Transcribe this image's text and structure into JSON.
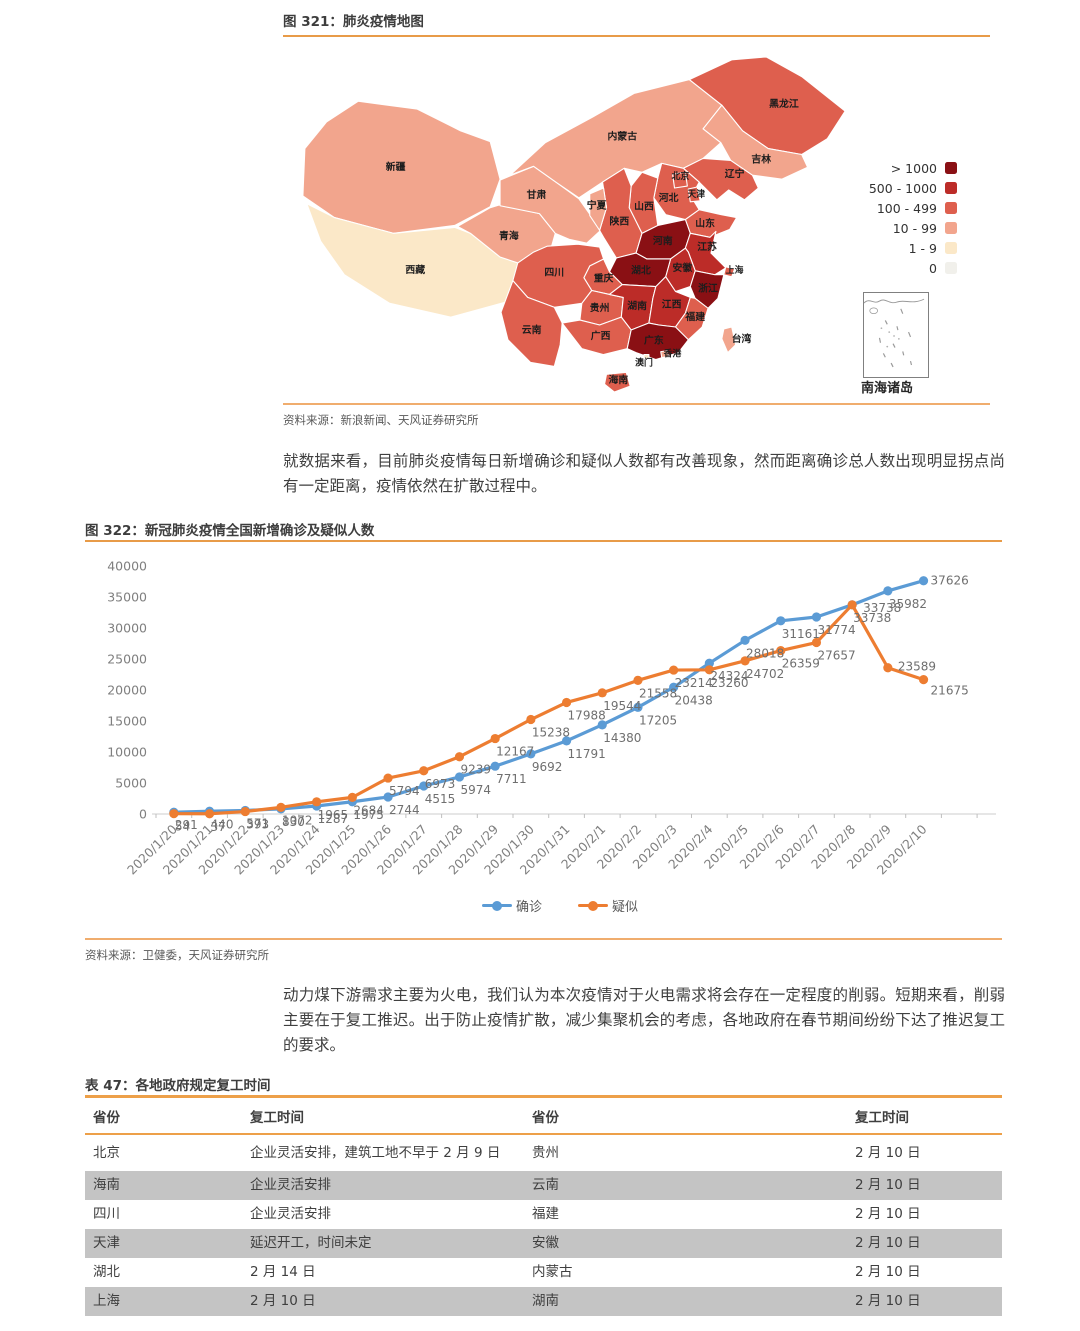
{
  "figure_321": {
    "title": "图 321：肺炎疫情地图",
    "source": "资料来源：新浪新闻、天风证券研究所",
    "inset_label": "南海诸岛",
    "legend": [
      {
        "label": "> 1000",
        "level": ">1000"
      },
      {
        "label": "500 - 1000",
        "level": "500-1000"
      },
      {
        "label": "100 - 499",
        "level": "100-499"
      },
      {
        "label": "10 - 99",
        "level": "10-99"
      },
      {
        "label": "1 - 9",
        "level": "1-9"
      },
      {
        "label": "0",
        "level": "0"
      }
    ],
    "level_colors": {
      ">1000": "#8a1014",
      "500-1000": "#bc2c28",
      "100-499": "#de5f4e",
      "10-99": "#f2a58d",
      "1-9": "#fbe8c8",
      "0": "#f1f0eb"
    },
    "map": {
      "provinces": [
        {
          "name": "新疆",
          "level": "10-99"
        },
        {
          "name": "西藏",
          "level": "1-9"
        },
        {
          "name": "青海",
          "level": "10-99"
        },
        {
          "name": "甘肃",
          "level": "10-99"
        },
        {
          "name": "内蒙古",
          "level": "10-99"
        },
        {
          "name": "黑龙江",
          "level": "100-499"
        },
        {
          "name": "吉林",
          "level": "10-99"
        },
        {
          "name": "辽宁",
          "level": "100-499"
        },
        {
          "name": "河北",
          "level": "100-499"
        },
        {
          "name": "山西",
          "level": "100-499"
        },
        {
          "name": "陕西",
          "level": "100-499"
        },
        {
          "name": "宁夏",
          "level": "10-99"
        },
        {
          "name": "山东",
          "level": "100-499"
        },
        {
          "name": "河南",
          "level": ">1000"
        },
        {
          "name": "江苏",
          "level": "500-1000"
        },
        {
          "name": "安徽",
          "level": "500-1000"
        },
        {
          "name": "浙江",
          "level": ">1000"
        },
        {
          "name": "湖北",
          "level": ">1000"
        },
        {
          "name": "重庆",
          "level": "100-499"
        },
        {
          "name": "四川",
          "level": "100-499"
        },
        {
          "name": "贵州",
          "level": "100-499"
        },
        {
          "name": "湖南",
          "level": "500-1000"
        },
        {
          "name": "江西",
          "level": "500-1000"
        },
        {
          "name": "福建",
          "level": "100-499"
        },
        {
          "name": "云南",
          "level": "100-499"
        },
        {
          "name": "广西",
          "level": "100-499"
        },
        {
          "name": "广东",
          "level": ">1000"
        },
        {
          "name": "海南",
          "level": "100-499"
        },
        {
          "name": "台湾",
          "level": "10-99"
        },
        {
          "name": "北京",
          "level": "100-499"
        },
        {
          "name": "天津",
          "level": "100-499"
        },
        {
          "name": "上海",
          "level": "100-499"
        },
        {
          "name": "香港",
          "level": "10-99"
        },
        {
          "name": "澳门",
          "level": "1-9"
        }
      ]
    }
  },
  "paragraph_1": "就数据来看，目前肺炎疫情每日新增确诊和疑似人数都有改善现象，然而距离确诊总人数出现明显拐点尚有一定距离，疫情依然在扩散过程中。",
  "figure_322": {
    "title": "图 322：新冠肺炎疫情全国新增确诊及疑似人数",
    "source": "资料来源：卫健委，天风证券研究所",
    "legend": [
      {
        "label": "确诊",
        "color": "#5b9bd5"
      },
      {
        "label": "疑似",
        "color": "#ed7d31"
      }
    ]
  },
  "chart_data": {
    "type": "line",
    "title": "新冠肺炎疫情全国新增确诊及疑似人数",
    "x": [
      "2020/1/20",
      "2020/1/21",
      "2020/1/22",
      "2020/1/23",
      "2020/1/24",
      "2020/1/25",
      "2020/1/26",
      "2020/1/27",
      "2020/1/28",
      "2020/1/29",
      "2020/1/30",
      "2020/1/31",
      "2020/2/1",
      "2020/2/2",
      "2020/2/3",
      "2020/2/4",
      "2020/2/5",
      "2020/2/6",
      "2020/2/7",
      "2020/2/8",
      "2020/2/9",
      "2020/2/10"
    ],
    "series": [
      {
        "name": "确诊",
        "color": "#5b9bd5",
        "values": [
          291,
          440,
          571,
          830,
          1287,
          1975,
          2744,
          4515,
          5974,
          7711,
          9692,
          11791,
          14380,
          17205,
          20438,
          24324,
          28018,
          31161,
          31774,
          33738,
          35982,
          37626
        ]
      },
      {
        "name": "疑似",
        "color": "#ed7d31",
        "values": [
          54,
          37,
          393,
          1072,
          1965,
          2684,
          5794,
          6973,
          9239,
          12167,
          15238,
          17988,
          19544,
          21558,
          23214,
          23260,
          24702,
          26359,
          27657,
          33738,
          23589,
          21675
        ]
      }
    ],
    "ylim": [
      0,
      40000
    ],
    "yticks": [
      0,
      5000,
      10000,
      15000,
      20000,
      25000,
      30000,
      35000,
      40000
    ],
    "grid": false,
    "legend_position": "bottom"
  },
  "paragraph_2": "动力煤下游需求主要为火电，我们认为本次疫情对于火电需求将会存在一定程度的削弱。短期来看，削弱主要在于复工推迟。出于防止疫情扩散，减少集聚机会的考虑，各地政府在春节期间纷纷下达了推迟复工的要求。",
  "table_47": {
    "title": "表 47：各地政府规定复工时间",
    "headers": [
      "省份",
      "复工时间",
      "省份",
      "复工时间"
    ],
    "rows": [
      [
        "北京",
        "企业灵活安排，建筑工地不早于 2 月 9 日",
        "贵州",
        "2 月 10 日"
      ],
      [
        "海南",
        "企业灵活安排",
        "云南",
        "2 月 10 日"
      ],
      [
        "四川",
        "企业灵活安排",
        "福建",
        "2 月 10 日"
      ],
      [
        "天津",
        "延迟开工，时间未定",
        "安徽",
        "2 月 10 日"
      ],
      [
        "湖北",
        "2 月 14 日",
        "内蒙古",
        "2 月 10 日"
      ],
      [
        "上海",
        "2 月 10 日",
        "湖南",
        "2 月 10 日"
      ]
    ]
  }
}
